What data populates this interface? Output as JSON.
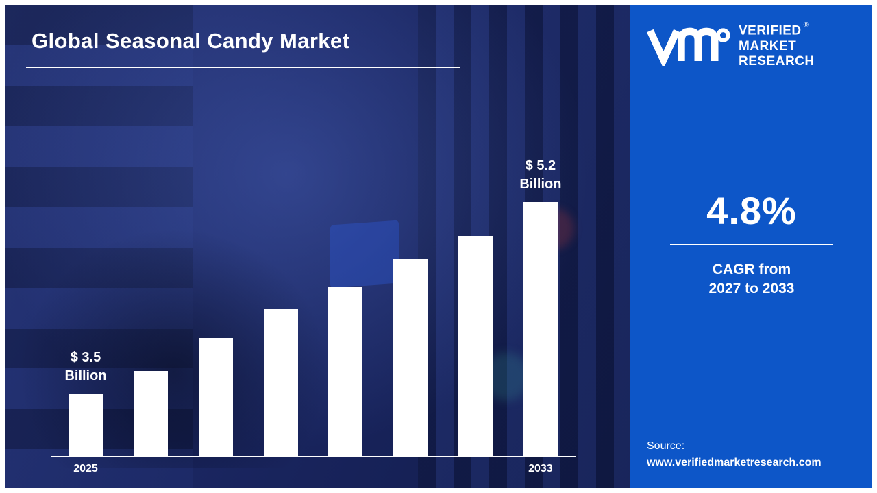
{
  "page": {
    "title": "Global Seasonal Candy Market"
  },
  "brand": {
    "lines": [
      "VERIFIED",
      "MARKET",
      "RESEARCH"
    ],
    "registered_mark": "®"
  },
  "stats": {
    "cagr_value": "4.8%",
    "caption_line1": "CAGR from",
    "caption_line2": "2027 to 2033"
  },
  "source": {
    "label": "Source:",
    "url": "www.verifiedmarketresearch.com"
  },
  "chart_data": {
    "type": "bar",
    "title": "Global Seasonal Candy Market",
    "categories": [
      "2025",
      "",
      "",
      "",
      "",
      "",
      "",
      "2033"
    ],
    "values": [
      3.5,
      3.7,
      4.0,
      4.25,
      4.45,
      4.7,
      4.9,
      5.2
    ],
    "unit": "$ Billion",
    "annotations": [
      {
        "bar": 0,
        "lines": [
          "$ 3.5",
          "Billion"
        ]
      },
      {
        "bar": 7,
        "lines": [
          "$ 5.2",
          "Billion"
        ]
      }
    ],
    "ylim": [
      2.95,
      5.45
    ],
    "bar_color": "#ffffff",
    "axis_line_color": "#ffffff",
    "grid": false,
    "legend": false
  },
  "colors": {
    "panel_blue": "#0d56c8",
    "background_navy": "#18234f",
    "text": "#ffffff"
  }
}
